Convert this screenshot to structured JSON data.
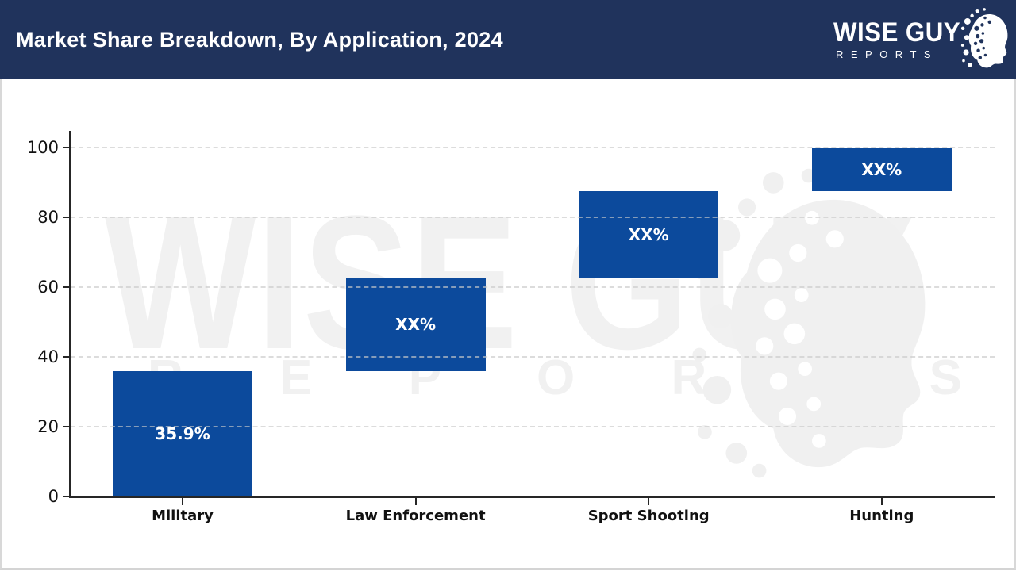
{
  "header": {
    "title": "Market Share Breakdown, By Application, 2024",
    "bg_color": "#20335c",
    "logo": {
      "line1": "WISE GUY",
      "line2": "REPORTS"
    }
  },
  "watermark": {
    "line1": "WISE GUY",
    "line2": "R E P O R T S"
  },
  "chart_data": {
    "type": "bar",
    "subtype": "floating-segment (waterfall-style market share progression)",
    "title": "Market Share Breakdown, By Application, 2024",
    "categories": [
      "Military",
      "Law Enforcement",
      "Sport Shooting",
      "Hunting"
    ],
    "segments": [
      {
        "category": "Military",
        "start": 0,
        "end": 35.9,
        "label": "35.9%"
      },
      {
        "category": "Law Enforcement",
        "start": 35.9,
        "end": 62.7,
        "label": "XX%"
      },
      {
        "category": "Sport Shooting",
        "start": 62.7,
        "end": 87.5,
        "label": "XX%"
      },
      {
        "category": "Hunting",
        "start": 87.5,
        "end": 100,
        "label": "XX%"
      }
    ],
    "yticks": [
      0,
      20,
      40,
      60,
      80,
      100
    ],
    "ylim": [
      0,
      104.5
    ],
    "xlabel": "",
    "ylabel": "",
    "grid": "horizontal dashed, drawn over bars",
    "legend": "none",
    "bar_color": "#0c4a9c",
    "bar_label_color": "#ffffff",
    "axis_color": "#262626",
    "tick_label_color": "#111111"
  }
}
